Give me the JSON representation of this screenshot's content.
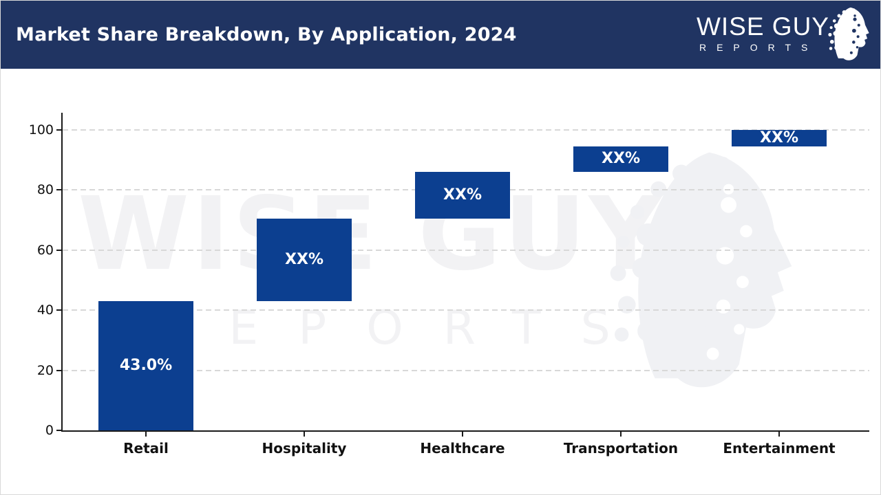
{
  "header": {
    "title": "Market Share Breakdown, By Application, 2024",
    "bg_color": "#203462",
    "logo": {
      "line1": "WISE GUY",
      "line2": "REPORTS"
    }
  },
  "watermark": {
    "line1": "WISE GUY",
    "line2": "REPORTS",
    "color": "#f2f2f4"
  },
  "chart_data": {
    "type": "bar",
    "variant": "waterfall-stepped",
    "title": "Market Share Breakdown, By Application, 2024",
    "categories": [
      "Retail",
      "Hospitality",
      "Healthcare",
      "Transportation",
      "Entertainment"
    ],
    "segments": [
      {
        "category": "Retail",
        "start": 0,
        "end": 43.0,
        "value": 43.0,
        "label": "43.0%"
      },
      {
        "category": "Hospitality",
        "start": 43.0,
        "end": 70.5,
        "value": 27.5,
        "label": "XX%"
      },
      {
        "category": "Healthcare",
        "start": 70.5,
        "end": 86.0,
        "value": 15.5,
        "label": "XX%"
      },
      {
        "category": "Transportation",
        "start": 86.0,
        "end": 94.5,
        "value": 8.5,
        "label": "XX%"
      },
      {
        "category": "Entertainment",
        "start": 94.5,
        "end": 100.0,
        "value": 5.5,
        "label": "XX%"
      }
    ],
    "xlabel": "",
    "ylabel": "",
    "ylim": [
      0,
      105
    ],
    "yticks": [
      0,
      20,
      40,
      60,
      80,
      100
    ],
    "grid": "horizontal-dashed",
    "legend": "none",
    "bar_color": "#0c3f90",
    "bar_label_color": "#ffffff",
    "gridline_color": "#d8d8d8",
    "axis_color": "#1a1a1a"
  }
}
